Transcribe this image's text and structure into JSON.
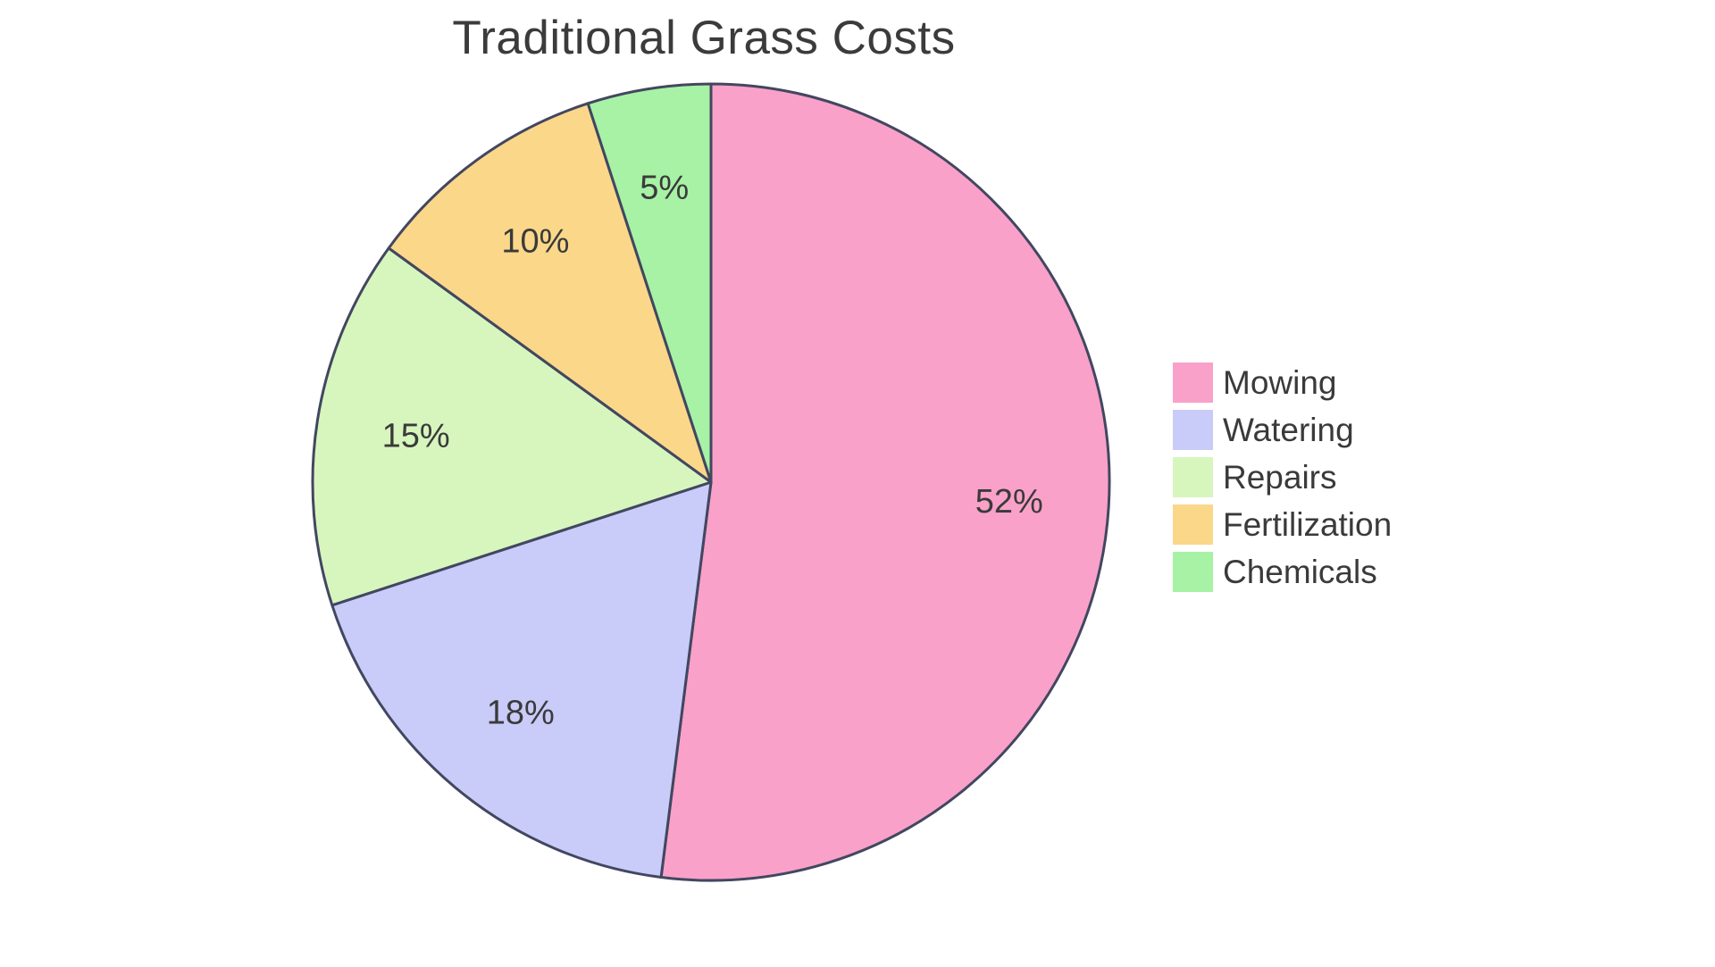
{
  "chart_data": {
    "type": "pie",
    "title": "Traditional Grass Costs",
    "categories": [
      "Mowing",
      "Watering",
      "Repairs",
      "Fertilization",
      "Chemicals"
    ],
    "values": [
      52,
      18,
      15,
      10,
      5
    ],
    "series": [
      {
        "label": "Mowing",
        "value": 52,
        "pct_label": "52%",
        "color": "#F9A1C9"
      },
      {
        "label": "Watering",
        "value": 18,
        "pct_label": "18%",
        "color": "#C9CBF8"
      },
      {
        "label": "Repairs",
        "value": 15,
        "pct_label": "15%",
        "color": "#D7F6BE"
      },
      {
        "label": "Fertilization",
        "value": 10,
        "pct_label": "10%",
        "color": "#FBD78A"
      },
      {
        "label": "Chemicals",
        "value": 5,
        "pct_label": "5%",
        "color": "#A7F2A5"
      }
    ],
    "start_angle_deg": 0,
    "direction": "clockwise",
    "slice_border_color": "#424760",
    "slice_label_color": "#3A3A3A",
    "title_color": "#3B3B3B",
    "legend_position": "right",
    "legend_text_color": "#3A3A3A",
    "background": "#FFFFFF"
  }
}
